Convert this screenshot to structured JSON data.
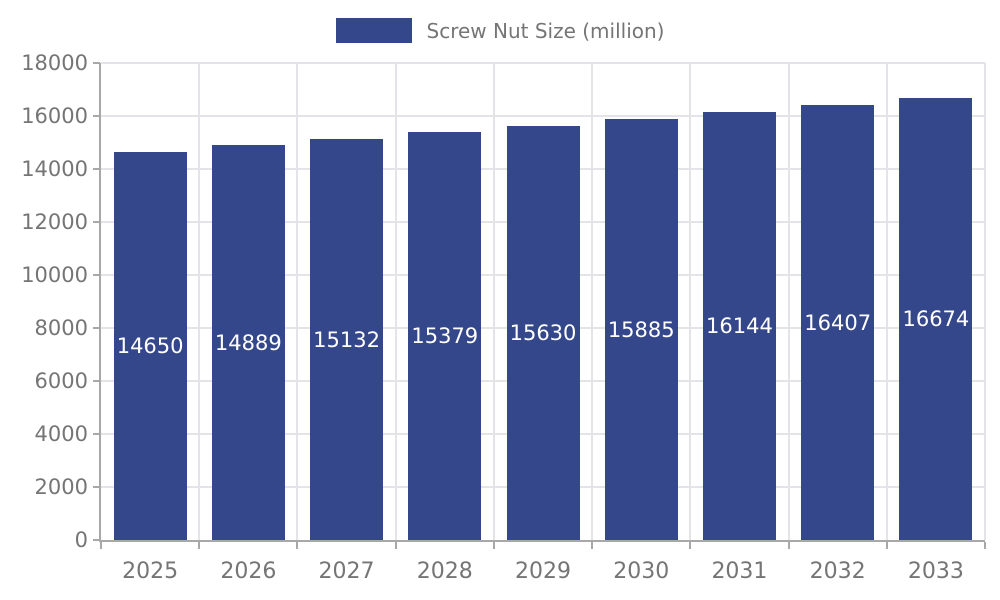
{
  "legend": {
    "label": "Screw Nut Size (million)"
  },
  "chart_data": {
    "type": "bar",
    "title": "",
    "categories": [
      "2025",
      "2026",
      "2027",
      "2028",
      "2029",
      "2030",
      "2031",
      "2032",
      "2033"
    ],
    "series": [
      {
        "name": "Screw Nut Size (million)",
        "values": [
          14650,
          14889,
          15132,
          15379,
          15630,
          15885,
          16144,
          16407,
          16674
        ]
      }
    ],
    "bar_labels": [
      "14650",
      "14889",
      "15132",
      "15379",
      "15630",
      "15885",
      "16144",
      "16407",
      "16674"
    ],
    "y_tick_labels": [
      "0",
      "2000",
      "4000",
      "6000",
      "8000",
      "10000",
      "12000",
      "14000",
      "16000",
      "18000"
    ],
    "ylim": [
      0,
      18000
    ],
    "ytick_step": 2000,
    "grid": true,
    "legend_position": "top-center",
    "colors": {
      "bar": "#35478B",
      "bar_label": "#FFFFFF",
      "axis": "#A8A8A8",
      "grid": "#E4E4E8",
      "tick_label": "#757575"
    }
  }
}
